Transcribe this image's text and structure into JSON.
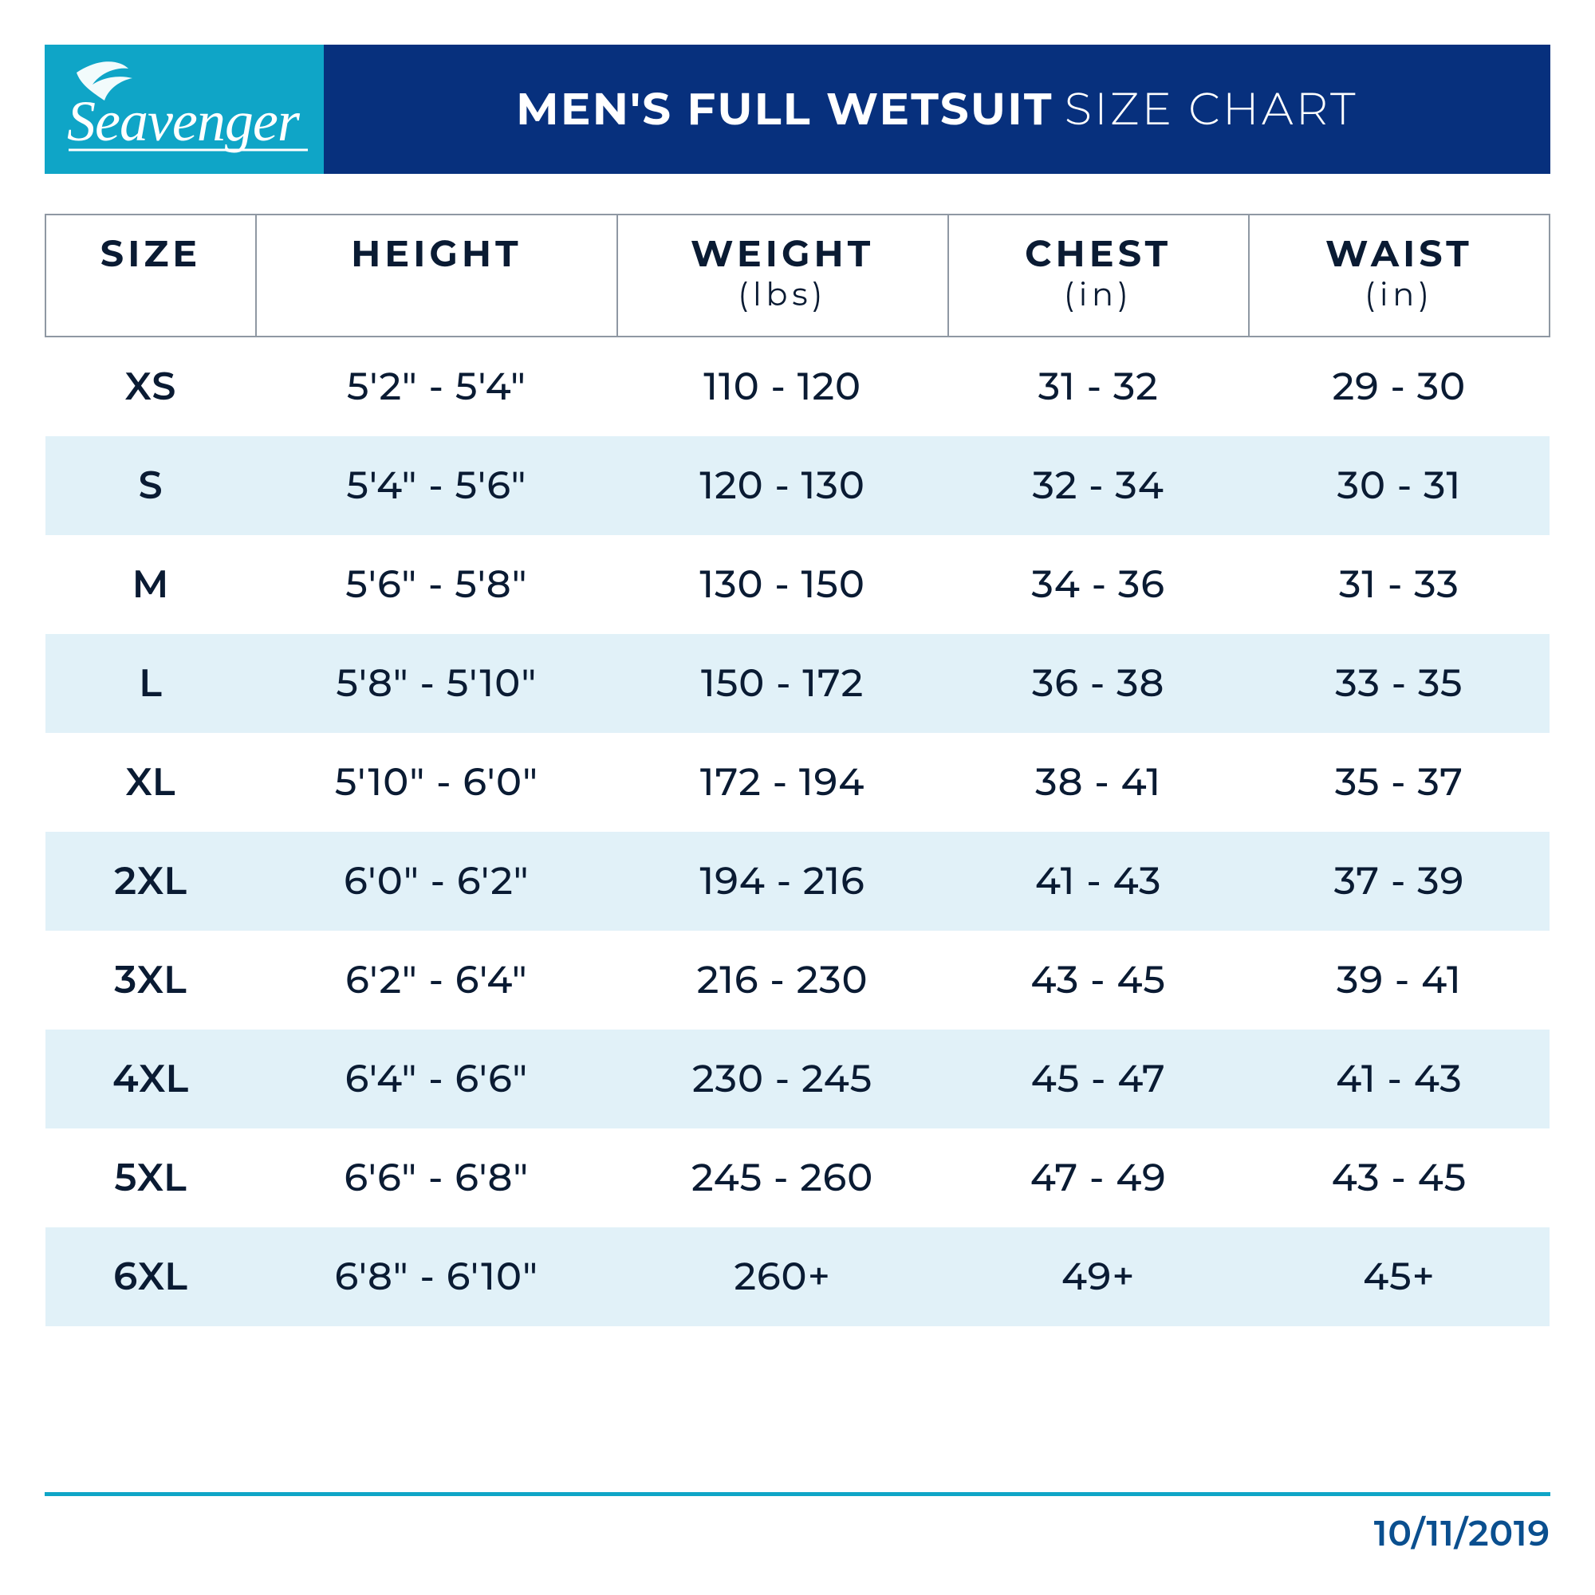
{
  "colors": {
    "logo_bg": "#0fa5c7",
    "title_bg": "#07307d",
    "text": "#0a1b33",
    "th_border": "#8f98a3",
    "alt_row": "#e1f1f8",
    "date": "#0a4f8f"
  },
  "banner": {
    "logo_text": "Seavenger",
    "title_bold": "MEN'S FULL WETSUIT",
    "title_light": "SIZE CHART"
  },
  "table": {
    "columns": [
      {
        "label": "SIZE",
        "sub": ""
      },
      {
        "label": "HEIGHT",
        "sub": ""
      },
      {
        "label": "WEIGHT",
        "sub": "(lbs)"
      },
      {
        "label": "CHEST",
        "sub": "(in)"
      },
      {
        "label": "WAIST",
        "sub": "(in)"
      }
    ],
    "rows": [
      {
        "size": "XS",
        "height": "5'2\" - 5'4\"",
        "weight": "110 - 120",
        "chest": "31 - 32",
        "waist": "29 - 30"
      },
      {
        "size": "S",
        "height": "5'4\" - 5'6\"",
        "weight": "120 - 130",
        "chest": "32 - 34",
        "waist": "30 - 31"
      },
      {
        "size": "M",
        "height": "5'6\" - 5'8\"",
        "weight": "130 - 150",
        "chest": "34 - 36",
        "waist": "31 - 33"
      },
      {
        "size": "L",
        "height": "5'8\" - 5'10\"",
        "weight": "150 - 172",
        "chest": "36 - 38",
        "waist": "33 - 35"
      },
      {
        "size": "XL",
        "height": "5'10\" - 6'0\"",
        "weight": "172 - 194",
        "chest": "38 - 41",
        "waist": "35 - 37"
      },
      {
        "size": "2XL",
        "height": "6'0\" - 6'2\"",
        "weight": "194 - 216",
        "chest": "41 - 43",
        "waist": "37 - 39"
      },
      {
        "size": "3XL",
        "height": "6'2\" - 6'4\"",
        "weight": "216 - 230",
        "chest": "43 - 45",
        "waist": "39 - 41"
      },
      {
        "size": "4XL",
        "height": "6'4\" - 6'6\"",
        "weight": "230 - 245",
        "chest": "45 - 47",
        "waist": "41 - 43"
      },
      {
        "size": "5XL",
        "height": "6'6\" - 6'8\"",
        "weight": "245 - 260",
        "chest": "47 - 49",
        "waist": "43 - 45"
      },
      {
        "size": "6XL",
        "height": "6'8\" - 6'10\"",
        "weight": "260+",
        "chest": "49+",
        "waist": "45+"
      }
    ],
    "col_widths_pct": [
      14,
      24,
      22,
      20,
      20
    ]
  },
  "date": "10/11/2019"
}
